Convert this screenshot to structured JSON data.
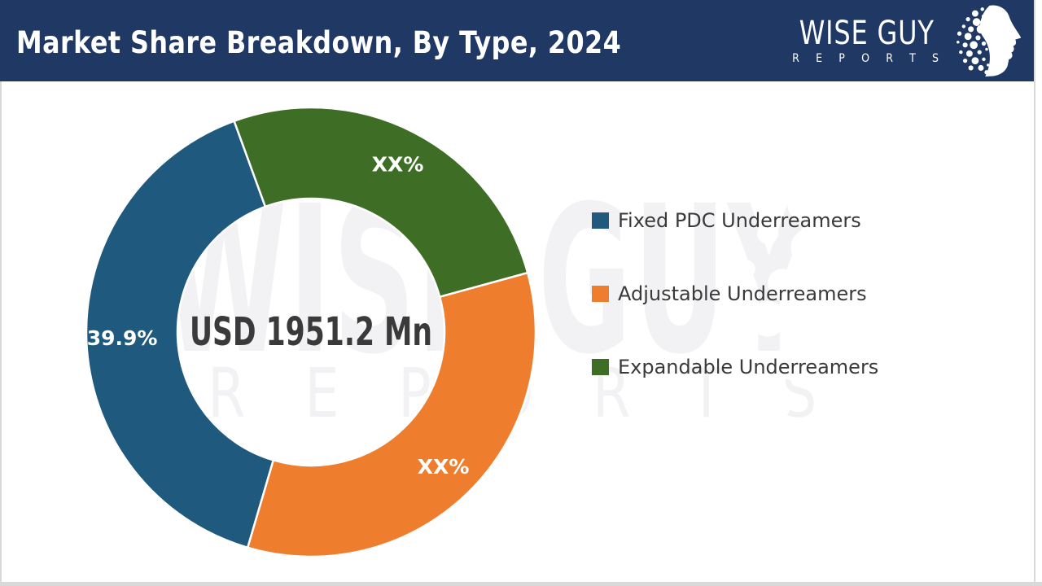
{
  "header": {
    "title": "Market Share Breakdown, By Type, 2024",
    "logo": {
      "name": "WISE GUY",
      "tagline": "R E P O R T S"
    }
  },
  "watermark": {
    "name": "WISE GUY",
    "tagline": "R E P O R T S"
  },
  "chart_data": {
    "type": "pie",
    "subtype": "donut",
    "title": "Market Share Breakdown, By Type, 2024",
    "center_label": "USD 1951.2 Mn",
    "unit": "%",
    "start_angle_deg": 110,
    "direction": "counterclockwise",
    "inner_radius_ratio": 0.59,
    "legend_position": "right",
    "grid": false,
    "segments": [
      {
        "label": "Fixed PDC Underreamers",
        "value_pct": 39.9,
        "display_label": "39.9%",
        "color": "#1F5A7E"
      },
      {
        "label": "Adjustable Underreamers",
        "value_pct": 33.8,
        "display_label": "XX%",
        "color": "#EE7D2E"
      },
      {
        "label": "Expandable Underreamers",
        "value_pct": 26.3,
        "display_label": "XX%",
        "color": "#3E6E26"
      }
    ]
  },
  "style": {
    "header_bg": "#1F3864",
    "page_bg": "#FFFFFF",
    "border_color": "#D9D9D9",
    "text_dark": "#3A3A3A",
    "slice_label_color": "#FFFFFF",
    "watermark_color": "#F2F2F4"
  }
}
